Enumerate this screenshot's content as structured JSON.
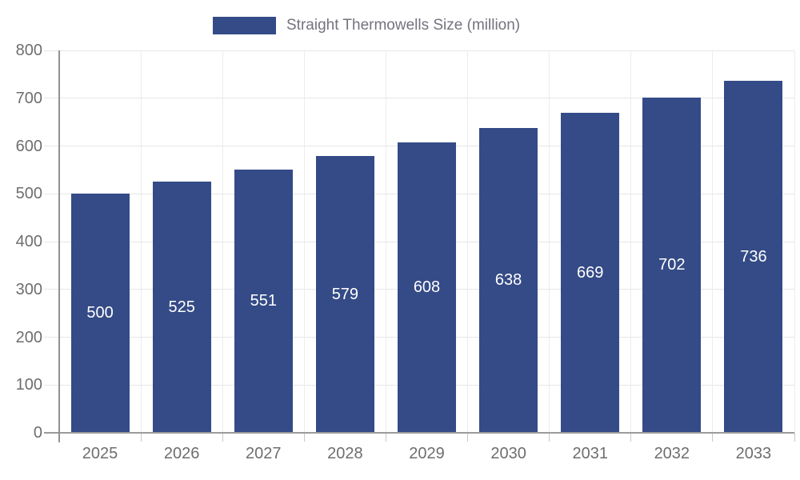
{
  "chart_data": {
    "type": "bar",
    "title": "Straight Thermowells Size (million)",
    "legend": [
      "Straight Thermowells Size (million)"
    ],
    "categories": [
      "2025",
      "2026",
      "2027",
      "2028",
      "2029",
      "2030",
      "2031",
      "2032",
      "2033"
    ],
    "values": [
      500,
      525,
      551,
      579,
      608,
      638,
      669,
      702,
      736
    ],
    "xlabel": "",
    "ylabel": "",
    "ylim": [
      0,
      800
    ],
    "ytick_step": 100,
    "grid": true,
    "legend_position": "top-center",
    "bar_label_position": "inside-center"
  },
  "colors": {
    "bar": "#354b87",
    "bar_label": "#ffffff",
    "y_axis_line": "#919191",
    "x_axis_line": "#9b9b9b",
    "grid_line": "#e6e6e6",
    "grid_line_vertical": "#ececec",
    "axis_tick": "#c8c8c8",
    "tick_text": "#6e6e6e",
    "legend_text": "#74737e",
    "background": "#ffffff"
  }
}
